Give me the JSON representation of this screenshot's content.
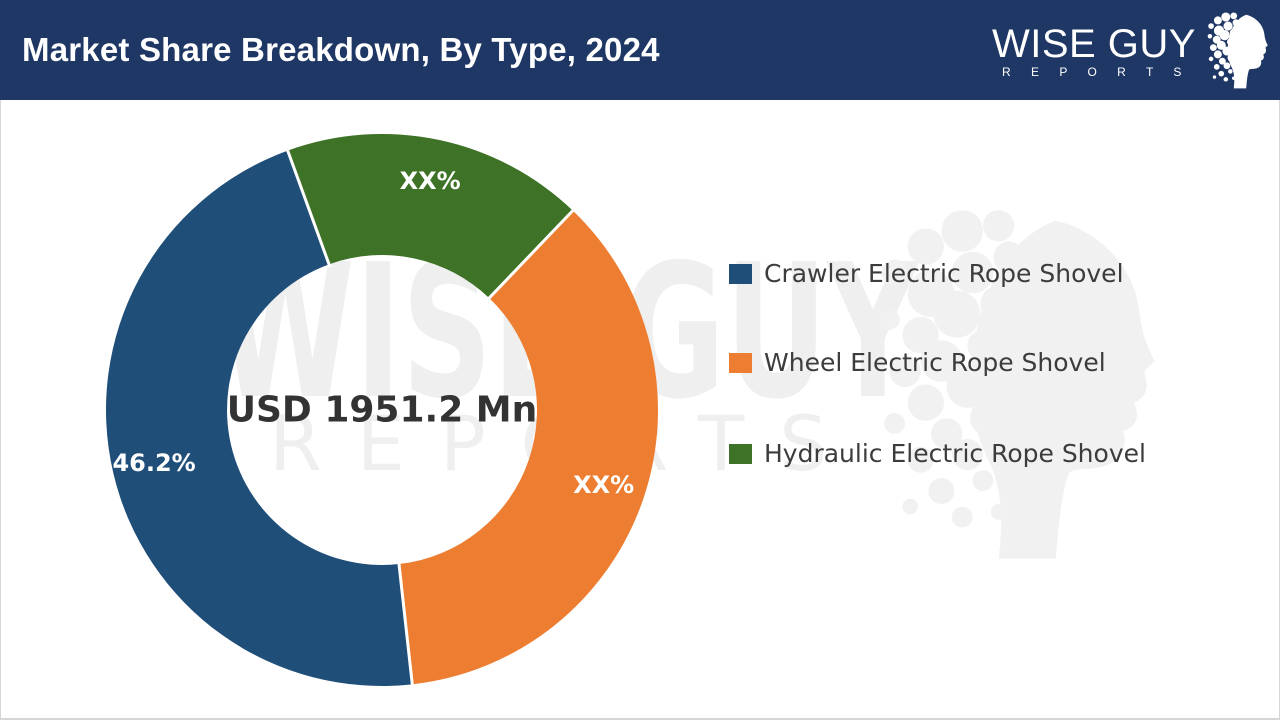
{
  "header": {
    "title": "Market Share Breakdown, By Type, 2024",
    "logo": {
      "wordmark": "WISE GUY",
      "subtext": "R E P O R T S"
    }
  },
  "watermark": {
    "line1": "WISE GUY",
    "line2": "REPORTS"
  },
  "chart_data": {
    "type": "pie",
    "donut": true,
    "title": "Market Share Breakdown, By Type, 2024",
    "center_label": "USD 1951.2 Mn",
    "legend_position": "right",
    "start_angle_deg": 173.7,
    "draw_order": [
      0,
      2,
      1
    ],
    "slices": [
      {
        "label": "Crawler Electric Rope Shovel",
        "value_pct": 46.2,
        "display_label": "46.2%",
        "color": "#1F4E79"
      },
      {
        "label": "Wheel Electric Rope Shovel",
        "value_pct": 36.1,
        "display_label": "XX%",
        "color": "#ED7D31"
      },
      {
        "label": "Hydraulic Electric Rope Shovel",
        "value_pct": 17.7,
        "display_label": "XX%",
        "color": "#3E7226"
      }
    ]
  }
}
